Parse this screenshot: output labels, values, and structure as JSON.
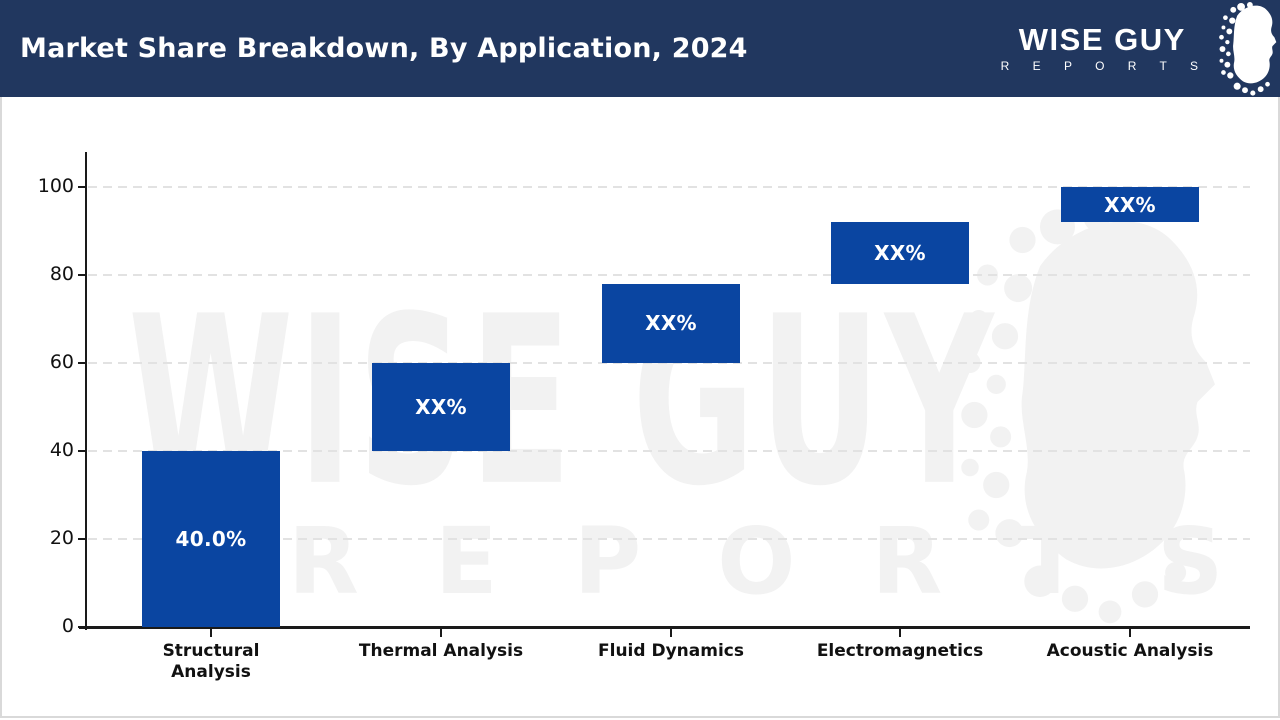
{
  "header": {
    "title": "Market Share Breakdown, By Application, 2024",
    "logo": {
      "line1": "WISE GUY",
      "line2": "R E P O R T S"
    }
  },
  "watermark": {
    "line1": "WISE GUY",
    "line2": "R E P O R T S"
  },
  "chart_data": {
    "type": "bar",
    "subtype": "waterfall",
    "title": "Market Share Breakdown, By Application, 2024",
    "categories": [
      "Structural Analysis",
      "Thermal Analysis",
      "Fluid Dynamics",
      "Electromagnetics",
      "Acoustic Analysis"
    ],
    "tick_labels": [
      "Structural\nAnalysis",
      "Thermal Analysis",
      "Fluid Dynamics",
      "Electromagnetics",
      "Acoustic Analysis"
    ],
    "segments": [
      {
        "category": "Structural Analysis",
        "start": 0,
        "end": 40,
        "value_label": "40.0%"
      },
      {
        "category": "Thermal Analysis",
        "start": 40,
        "end": 60,
        "value_label": "XX%"
      },
      {
        "category": "Fluid Dynamics",
        "start": 60,
        "end": 78,
        "value_label": "XX%"
      },
      {
        "category": "Electromagnetics",
        "start": 78,
        "end": 92,
        "value_label": "XX%"
      },
      {
        "category": "Acoustic Analysis",
        "start": 92,
        "end": 100,
        "value_label": "XX%"
      }
    ],
    "y_ticks": [
      0,
      20,
      40,
      60,
      80,
      100
    ],
    "ylim": [
      0,
      108
    ],
    "xlabel": "",
    "ylabel": "",
    "legend": "none",
    "grid": "horizontal-dashed",
    "bar_color": "#0a45a1",
    "axis_color": "#1a1a1a",
    "grid_color": "#e2e2e2",
    "header_bg_color": "#21375f",
    "label_color_on_bar": "#ffffff"
  }
}
